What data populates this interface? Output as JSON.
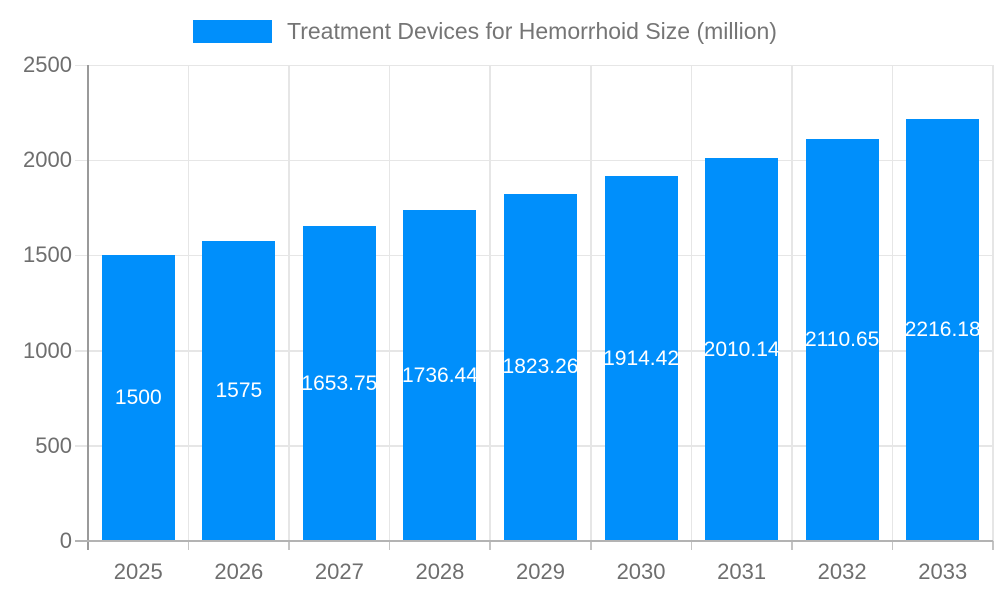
{
  "legend": {
    "label": "Treatment Devices for Hemorrhoid Size (million)"
  },
  "chart_data": {
    "type": "bar",
    "title": "Treatment Devices for Hemorrhoid Size (million)",
    "categories": [
      "2025",
      "2026",
      "2027",
      "2028",
      "2029",
      "2030",
      "2031",
      "2032",
      "2033"
    ],
    "series": [
      {
        "name": "Treatment Devices for Hemorrhoid Size (million)",
        "values": [
          1500,
          1575,
          1653.75,
          1736.44,
          1823.26,
          1914.42,
          2010.14,
          2110.65,
          2216.18
        ],
        "labels": [
          "1500",
          "1575",
          "1653.75",
          "1736.44",
          "1823.26",
          "1914.42",
          "2010.14",
          "2110.65",
          "2216.18"
        ]
      }
    ],
    "xlabel": "",
    "ylabel": "",
    "ylim": [
      0,
      2500
    ],
    "yticks": [
      0,
      500,
      1000,
      1500,
      2000,
      2500
    ],
    "ytick_labels": [
      "0",
      "500",
      "1000",
      "1500",
      "2000",
      "2500"
    ],
    "grid": true,
    "legend_position": "top"
  },
  "colors": {
    "bar": "#008FFB",
    "bar_label": "#ffffff",
    "legend_text": "#757575",
    "tick_label": "#6e6e6e",
    "axis_line": "#9a9a9a",
    "baseline": "#b3b3b3",
    "gridline": "#e6e6e6",
    "tick_stub": "#c4c4c4",
    "background": "#ffffff"
  }
}
